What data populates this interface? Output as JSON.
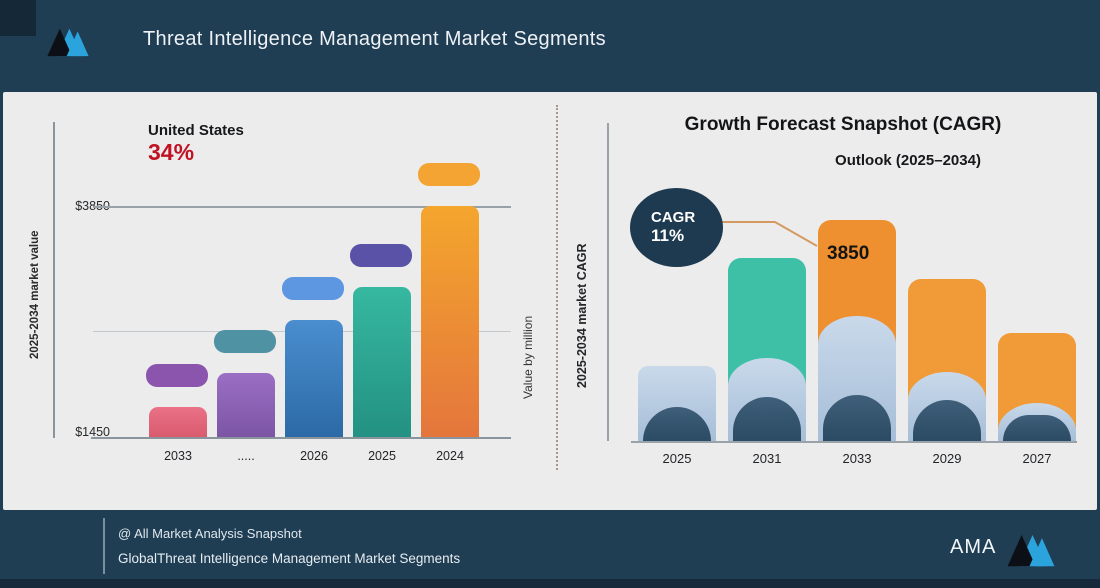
{
  "header": {
    "title": "Threat Intelligence Management Market Segments",
    "logo": "ama-mountain-logo"
  },
  "footer": {
    "note": "@ All Market Analysis Snapshot",
    "caption": "GlobalThreat Intelligence Management Market Segments",
    "brand": "AMA",
    "logo": "ama-mountain-logo"
  },
  "colors": {
    "header_bg": "#1f3d53",
    "card_bg": "#ececec",
    "highlight_red": "#c01223",
    "badge_navy": "#1d3a50",
    "connector_orange": "#d49a62",
    "logo_blue": "#2ba3dc",
    "logo_black": "#0c1016"
  },
  "chart_data": [
    {
      "type": "bar",
      "title": "United States",
      "highlight_value": "34%",
      "ylabel": "2025-2034 market value",
      "ylabel_right": "Value by million",
      "ytick_labels": [
        "$3850",
        "$1450"
      ],
      "ylim": [
        1450,
        3850
      ],
      "grid": "on",
      "categories": [
        "2033",
        ".....",
        "2026",
        "2025",
        "2024"
      ],
      "values": [
        1760,
        2120,
        2670,
        3010,
        3850
      ],
      "bar_gradients": [
        [
          "#ea7187",
          "#d95b6e"
        ],
        [
          "#9b6fc4",
          "#7c55a5"
        ],
        [
          "#4a8ecf",
          "#2c6aa6"
        ],
        [
          "#36b8a0",
          "#239183"
        ],
        [
          "#f4a62d",
          "#e4763c"
        ]
      ],
      "cap_colors": [
        "#8b55ae",
        "#4e92a3",
        "#5d97e2",
        "#5952a6",
        "#f3a432"
      ]
    },
    {
      "type": "stacked-bar",
      "title": "Growth Forecast Snapshot (CAGR)",
      "subtitle": "Outlook (2025–2034)",
      "ylabel": "2025-2034 market CAGR",
      "badge": {
        "label": "CAGR",
        "value": "11%"
      },
      "annotation": {
        "text": "3850",
        "category": "2033"
      },
      "categories": [
        "2025",
        "2031",
        "2033",
        "2029",
        "2027"
      ],
      "series": [
        {
          "name": "base-segment",
          "color_top": "#3f5f7a",
          "color_bottom": "#2b4a63",
          "values": [
            34,
            44,
            46,
            41,
            26
          ]
        },
        {
          "name": "mid-segment",
          "color_top": "#c9d9ea",
          "color_bottom": "#a6bed8",
          "values": [
            41,
            39,
            79,
            28,
            12
          ]
        },
        {
          "name": "accent-segment",
          "colors": [
            null,
            "#3ec0a6",
            "#ef9030",
            "#f09a38",
            "#f09a38"
          ],
          "values": [
            0,
            100,
            96,
            93,
            70
          ]
        }
      ]
    }
  ]
}
